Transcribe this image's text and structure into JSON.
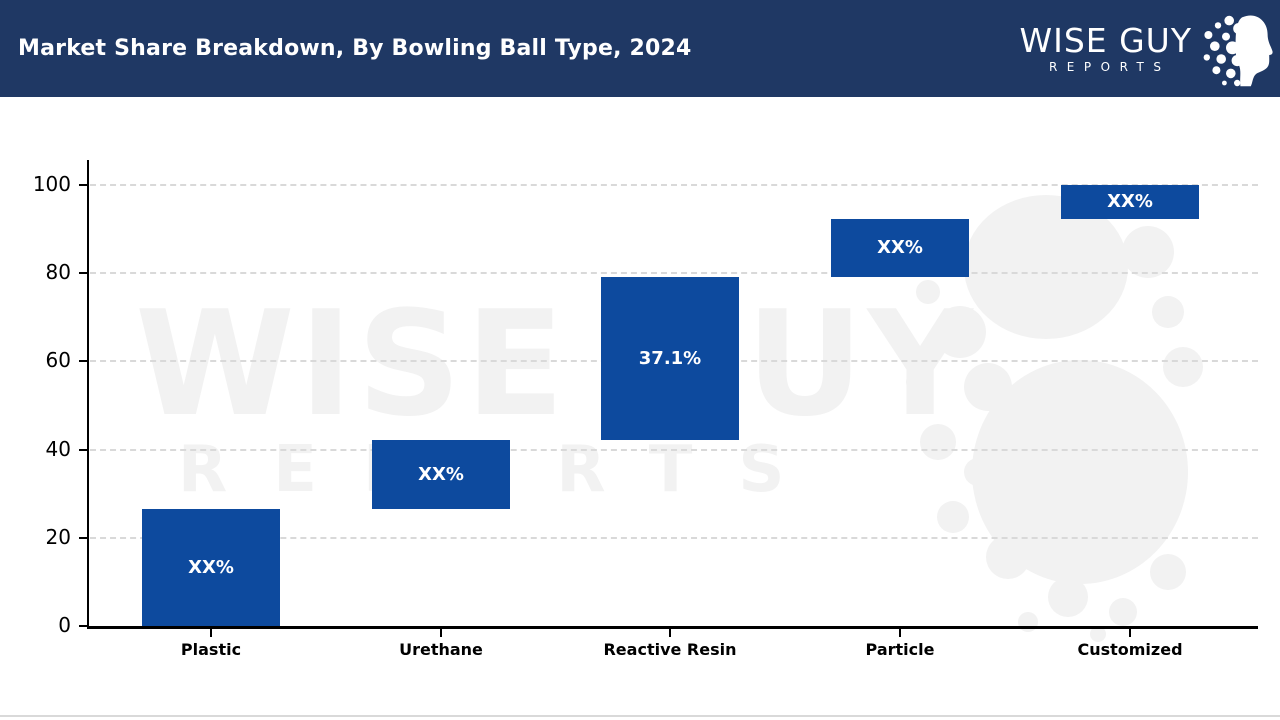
{
  "header": {
    "title": "Market Share Breakdown, By Bowling Ball Type, 2024",
    "bg_color": "#1f3864",
    "logo": {
      "wordmark": "WISE GUY",
      "subtitle": "REPORTS"
    }
  },
  "watermark": {
    "wordmark": "WISE GUY",
    "subtitle": "REPORTS"
  },
  "chart_data": {
    "type": "bar",
    "subtype": "waterfall",
    "title": "Market Share Breakdown, By Bowling Ball Type, 2024",
    "categories": [
      "Plastic",
      "Urethane",
      "Reactive Resin",
      "Particle",
      "Customized"
    ],
    "segments": [
      {
        "category": "Plastic",
        "start": 0,
        "end": 26.5,
        "label": "XX%"
      },
      {
        "category": "Urethane",
        "start": 26.5,
        "end": 42.1,
        "label": "XX%"
      },
      {
        "category": "Reactive Resin",
        "start": 42.1,
        "end": 79.2,
        "label": "37.1%"
      },
      {
        "category": "Particle",
        "start": 79.2,
        "end": 92.4,
        "label": "XX%"
      },
      {
        "category": "Customized",
        "start": 92.4,
        "end": 100,
        "label": "XX%"
      }
    ],
    "xlabel": "",
    "ylabel": "",
    "ylim": [
      0,
      100
    ],
    "yticks": [
      0,
      20,
      40,
      60,
      80,
      100
    ],
    "grid": "horizontal-dashed",
    "legend": "none",
    "bar_color": "#0d4a9e",
    "grid_color": "#d9d9d9",
    "axis_color": "#000000",
    "bar_label_color": "#ffffff"
  }
}
